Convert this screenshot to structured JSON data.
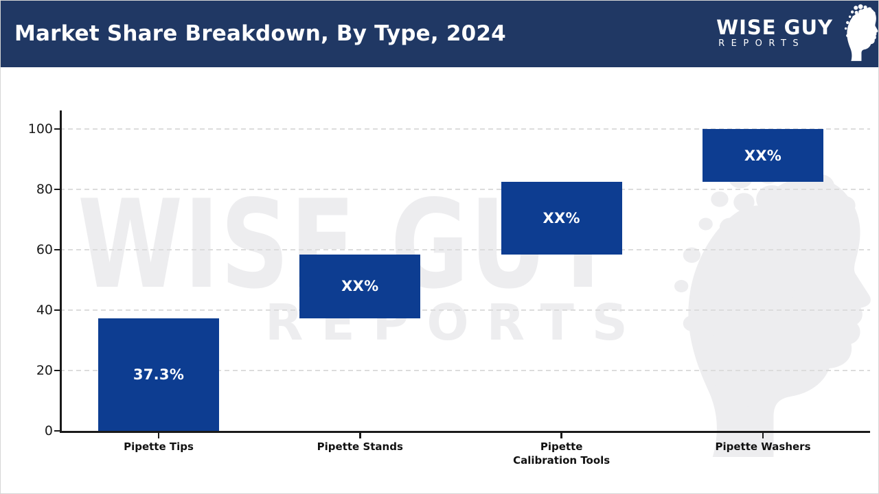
{
  "header": {
    "title": "Market Share Breakdown, By Type, 2024",
    "logo": {
      "line1": "WISE GUY",
      "line2": "REPORTS",
      "face_icon": "dotted-face-profile"
    }
  },
  "watermark": {
    "line1": "WISE GUY",
    "line2": "REPORTS",
    "face_icon": "dotted-face-profile"
  },
  "chart_data": {
    "type": "bar",
    "subtype": "floating-cascade",
    "title": "Market Share Breakdown, By Type, 2024",
    "xlabel": "",
    "ylabel": "",
    "ylim": [
      0,
      100
    ],
    "y_ticks": [
      0,
      20,
      40,
      60,
      80,
      100
    ],
    "grid": "dashed-horizontal",
    "legend": "none",
    "categories": [
      "Pipette Tips",
      "Pipette Stands",
      "Pipette\nCalibration Tools",
      "Pipette Washers"
    ],
    "segments": [
      {
        "category": "Pipette Tips",
        "start": 0,
        "end": 37.3,
        "label": "37.3%"
      },
      {
        "category": "Pipette Stands",
        "start": 37.3,
        "end": 58.5,
        "label": "XX%"
      },
      {
        "category": "Pipette\nCalibration Tools",
        "start": 58.5,
        "end": 82.5,
        "label": "XX%"
      },
      {
        "category": "Pipette Washers",
        "start": 82.5,
        "end": 100,
        "label": "XX%"
      }
    ]
  },
  "colors": {
    "header_bg": "#203864",
    "bar_fill": "#0d3d91",
    "bar_label": "#ffffff",
    "grid": "#dcdcdc",
    "axis": "#1a1a1a",
    "watermark": "#ededef"
  }
}
